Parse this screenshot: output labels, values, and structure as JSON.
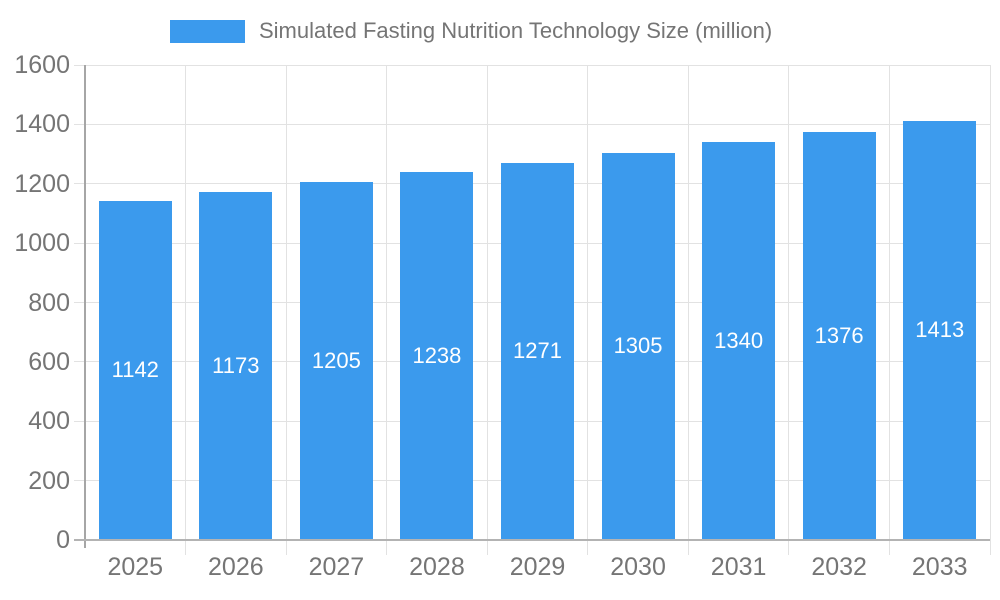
{
  "legend": {
    "label": "Simulated Fasting Nutrition Technology Size (million)"
  },
  "chart_data": {
    "type": "bar",
    "title": "Simulated Fasting Nutrition Technology Size (million)",
    "series_name": "Simulated Fasting Nutrition Technology Size (million)",
    "categories": [
      "2025",
      "2026",
      "2027",
      "2028",
      "2029",
      "2030",
      "2031",
      "2032",
      "2033"
    ],
    "values": [
      1142,
      1173,
      1205,
      1238,
      1271,
      1305,
      1340,
      1376,
      1413
    ],
    "value_labels": [
      "1142",
      "1173",
      "1205",
      "1238",
      "1271",
      "1305",
      "1340",
      "1376",
      "1413"
    ],
    "xlabel": "",
    "ylabel": "",
    "ylim": [
      0,
      1600
    ],
    "ytick_step": 200,
    "yticks": [
      "0",
      "200",
      "400",
      "600",
      "800",
      "1000",
      "1200",
      "1400",
      "1600"
    ],
    "grid": true,
    "legend_position": "top",
    "colors": {
      "bar": "#3b9aed",
      "grid": "#e2e2e2",
      "x_axis": "#b3b3b3",
      "y_axis": "#a6a6a6",
      "text": "#757575",
      "value_label": "#ffffff"
    }
  }
}
